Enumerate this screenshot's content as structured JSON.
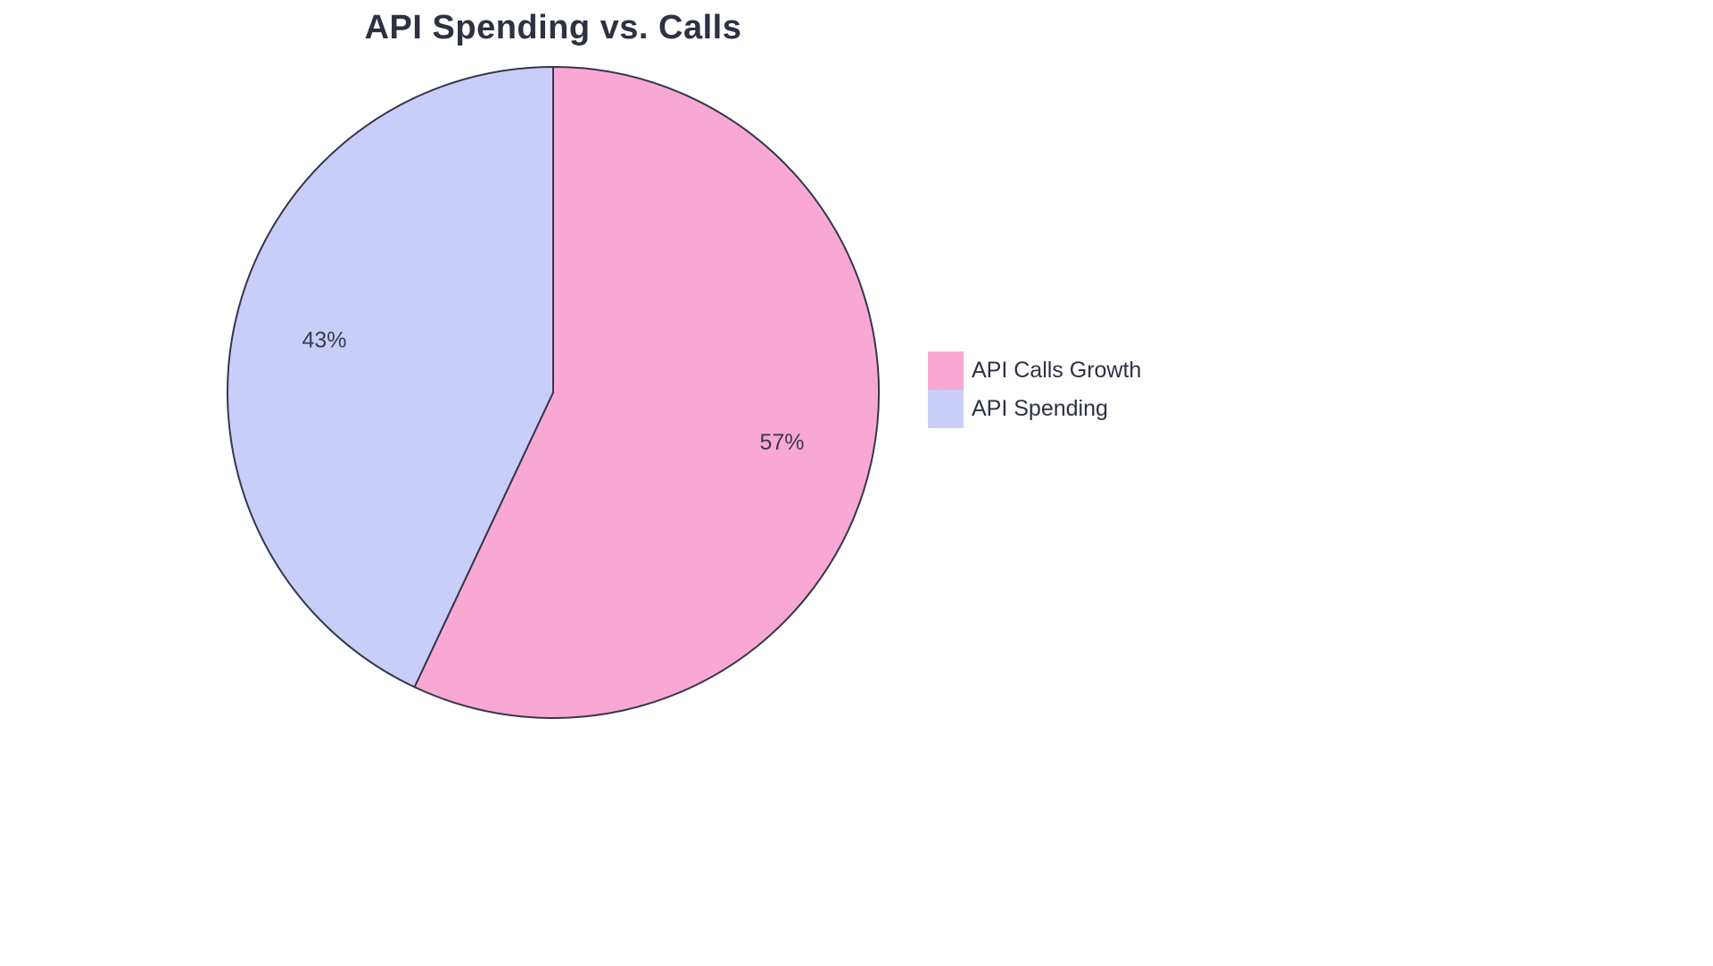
{
  "page": {
    "background_color": "#FFFFFF"
  },
  "chart_data": {
    "type": "pie",
    "title": "API Spending vs. Calls",
    "slices": [
      {
        "label": "API Calls Growth",
        "value": 57,
        "percent_label": "57%",
        "color": "#F9A8D4"
      },
      {
        "label": "API Spending",
        "value": 43,
        "percent_label": "43%",
        "color": "#C9CEF8"
      }
    ],
    "start_angle_deg": 0,
    "direction": "clockwise",
    "stroke_color": "#34374C",
    "stroke_width": 2,
    "percent_label_color": "#3A3A4E",
    "title_color": "#2E3142",
    "legend": {
      "position": "right"
    }
  }
}
